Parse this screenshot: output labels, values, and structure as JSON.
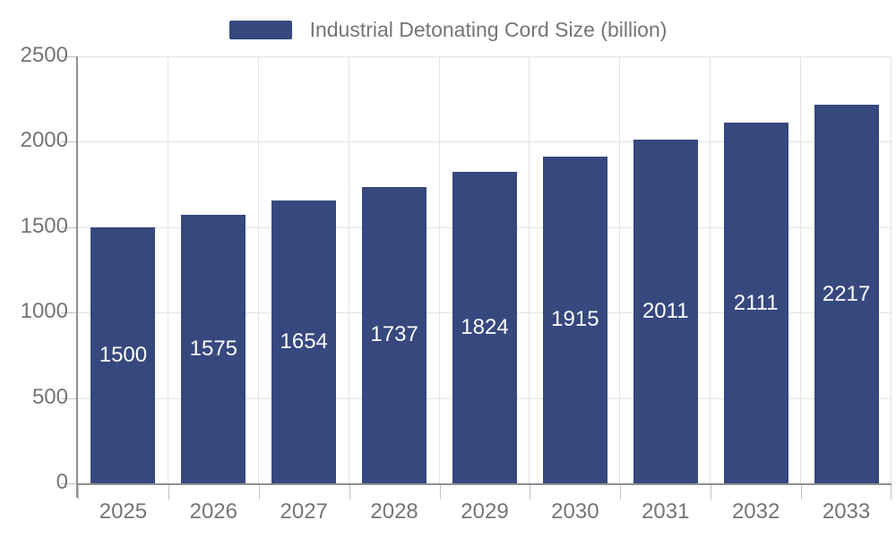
{
  "legend": {
    "series_label": "Industrial Detonating Cord Size (billion)"
  },
  "chart_data": {
    "type": "bar",
    "title": "Industrial Detonating Cord Size (billion)",
    "categories": [
      "2025",
      "2026",
      "2027",
      "2028",
      "2029",
      "2030",
      "2031",
      "2032",
      "2033"
    ],
    "values": [
      1500,
      1575,
      1654,
      1737,
      1824,
      1915,
      2011,
      2111,
      2217
    ],
    "xlabel": "",
    "ylabel": "",
    "ylim": [
      0,
      2500
    ],
    "yticks": [
      0,
      500,
      1000,
      1500,
      2000,
      2500
    ],
    "grid": true,
    "legend_position": "top-center",
    "value_labels": "inside-center",
    "colors": {
      "bar": "#36487E",
      "value_label": "#FFFFFF",
      "axis_label": "#757575",
      "legend_label": "#757575",
      "grid": "#E3E3E3",
      "axis_line": "#8F8F8F",
      "tick": "#C2C2C2",
      "background": "#FFFFFF"
    }
  }
}
